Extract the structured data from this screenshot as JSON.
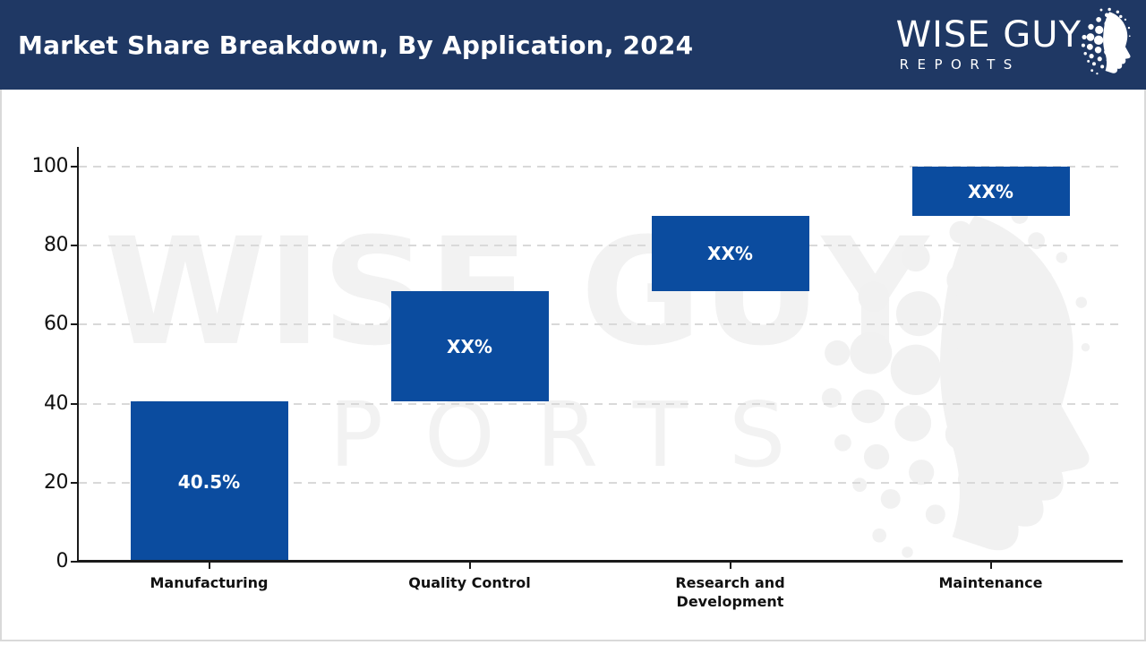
{
  "header": {
    "bg_color": "#1f3864",
    "title": "Market Share Breakdown, By Application, 2024",
    "logo": {
      "name": "WISE GUY",
      "sub": "REPORTS"
    }
  },
  "watermark": {
    "line1": "WISE GUY",
    "line2": "REPORTS"
  },
  "chart_data": {
    "type": "bar",
    "subtype": "waterfall",
    "title": "Market Share Breakdown, By Application, 2024",
    "categories": [
      "Manufacturing",
      "Quality Control",
      "Research and\nDevelopment",
      "Maintenance"
    ],
    "series": [
      {
        "name": "Market share (%)",
        "segments": [
          {
            "category": "Manufacturing",
            "start": 0,
            "end": 40.5,
            "label": "40.5%"
          },
          {
            "category": "Quality Control",
            "start": 40.5,
            "end": 68.5,
            "label": "XX%"
          },
          {
            "category": "Research and Development",
            "start": 68.5,
            "end": 87.5,
            "label": "XX%"
          },
          {
            "category": "Maintenance",
            "start": 87.5,
            "end": 100,
            "label": "XX%"
          }
        ]
      }
    ],
    "xlabel": "",
    "ylabel": "",
    "yticks": [
      0,
      20,
      40,
      60,
      80,
      100
    ],
    "ylim": [
      0,
      105
    ],
    "grid": "horizontal-dashed",
    "legend": "none",
    "bar_color": "#0b4c9f",
    "bar_label_color": "#ffffff",
    "gridline_color": "#d9d9d9",
    "axis_color": "#1a1a1a"
  }
}
